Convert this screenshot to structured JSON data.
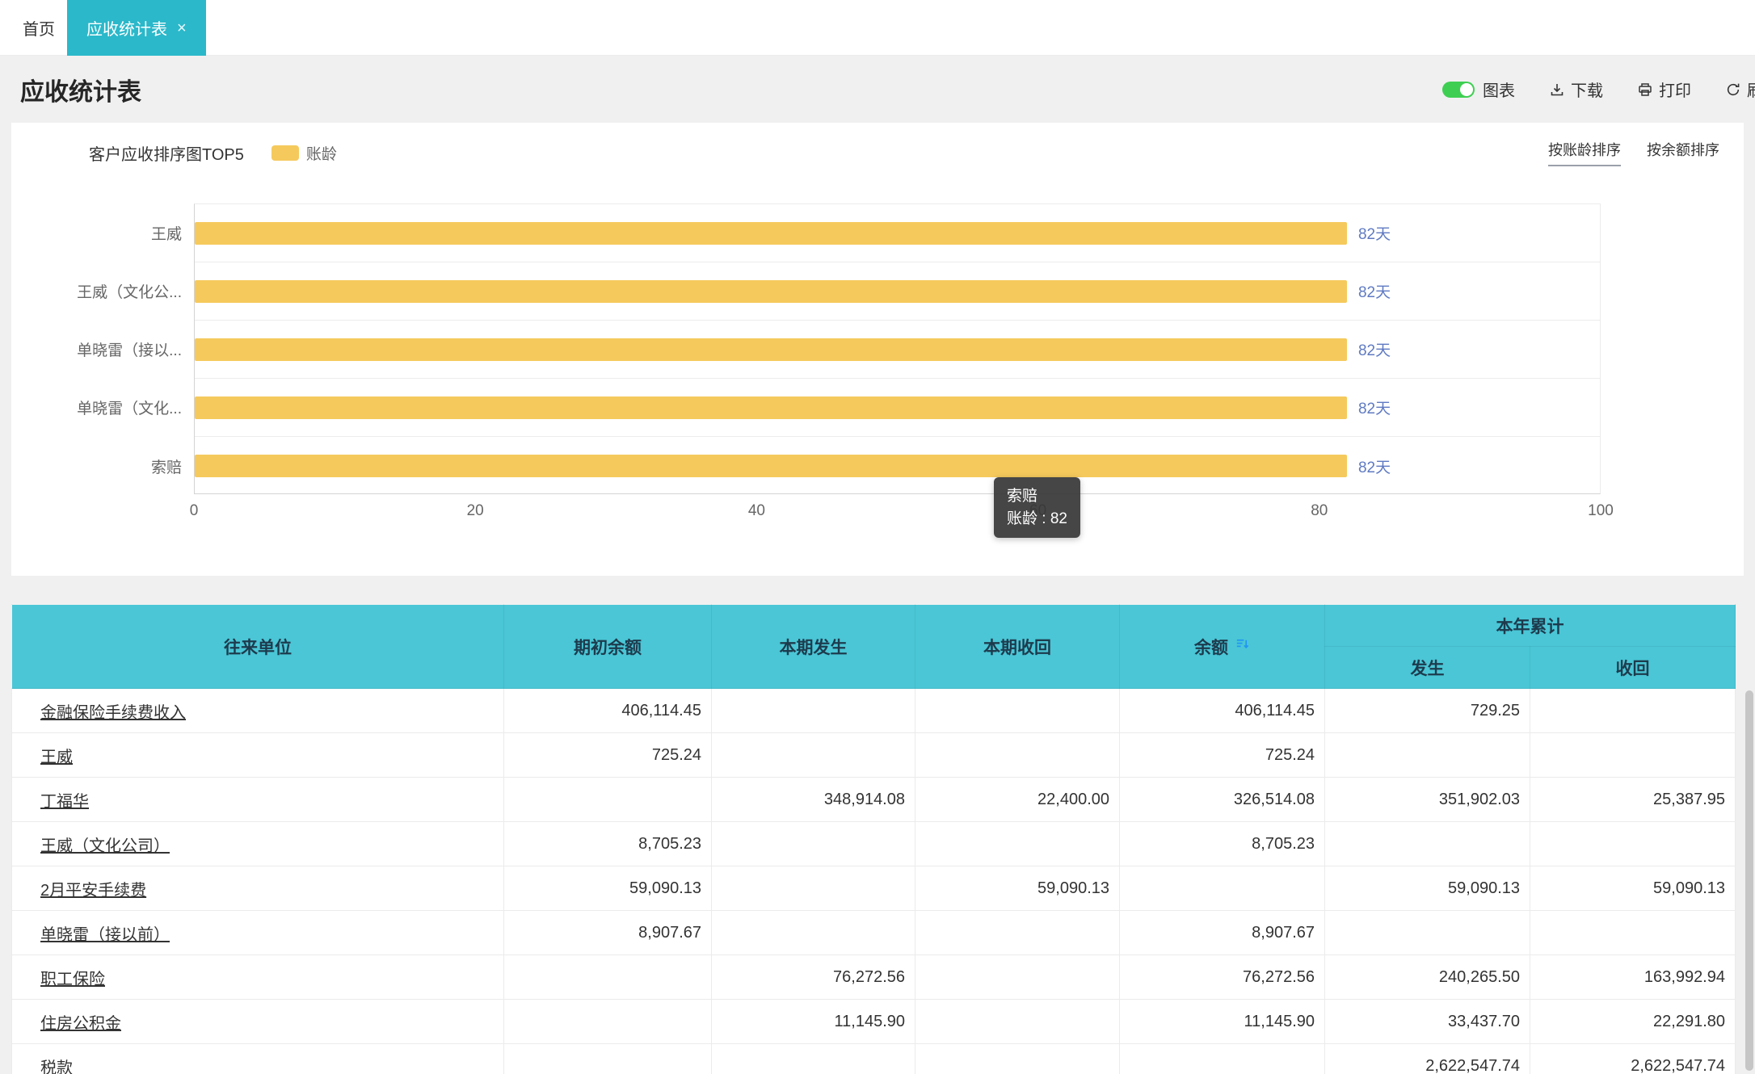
{
  "tabs": {
    "home": "首页",
    "active": "应收统计表",
    "close": "×"
  },
  "header": {
    "title": "应收统计表",
    "toolbar": {
      "chart_toggle": "图表",
      "download": "下载",
      "print": "打印",
      "refresh": "刷新"
    }
  },
  "chart": {
    "title": "客户应收排序图TOP5",
    "legend_label": "账龄",
    "sort_by_age": "按账龄排序",
    "sort_by_balance": "按余额排序",
    "tooltip_title": "索赔",
    "tooltip_value": "账龄 : 82"
  },
  "chart_data": {
    "type": "bar",
    "orientation": "horizontal",
    "title": "客户应收排序图TOP5",
    "series_name": "账龄",
    "categories": [
      "王威",
      "王威（文化公...",
      "单晓雷（接以...",
      "单晓雷（文化...",
      "索赔"
    ],
    "values": [
      82,
      82,
      82,
      82,
      82
    ],
    "value_labels": [
      "82天",
      "82天",
      "82天",
      "82天",
      "82天"
    ],
    "xlim": [
      0,
      100
    ],
    "x_ticks": [
      "0",
      "20",
      "40",
      "60",
      "80",
      "100"
    ],
    "bar_color": "#f5c95c",
    "grid": true,
    "legend_position": "top-left"
  },
  "table": {
    "header": {
      "partner": "往来单位",
      "opening_balance": "期初余额",
      "period_incurred": "本期发生",
      "period_received": "本期收回",
      "balance": "余额",
      "ytd_group": "本年累计",
      "ytd_incurred": "发生",
      "ytd_received": "收回"
    },
    "rows": [
      {
        "name": "金融保险手续费收入",
        "opening": "406,114.45",
        "incurred": "",
        "received": "",
        "balance": "406,114.45",
        "ytd_incurred": "729.25",
        "ytd_received": ""
      },
      {
        "name": "王威",
        "opening": "725.24",
        "incurred": "",
        "received": "",
        "balance": "725.24",
        "ytd_incurred": "",
        "ytd_received": ""
      },
      {
        "name": "丁福华",
        "opening": "",
        "incurred": "348,914.08",
        "received": "22,400.00",
        "balance": "326,514.08",
        "ytd_incurred": "351,902.03",
        "ytd_received": "25,387.95"
      },
      {
        "name": "王威（文化公司）",
        "opening": "8,705.23",
        "incurred": "",
        "received": "",
        "balance": "8,705.23",
        "ytd_incurred": "",
        "ytd_received": ""
      },
      {
        "name": "2月平安手续费",
        "opening": "59,090.13",
        "incurred": "",
        "received": "59,090.13",
        "balance": "",
        "ytd_incurred": "59,090.13",
        "ytd_received": "59,090.13"
      },
      {
        "name": "单晓雷（接以前）",
        "opening": "8,907.67",
        "incurred": "",
        "received": "",
        "balance": "8,907.67",
        "ytd_incurred": "",
        "ytd_received": ""
      },
      {
        "name": "职工保险",
        "opening": "",
        "incurred": "76,272.56",
        "received": "",
        "balance": "76,272.56",
        "ytd_incurred": "240,265.50",
        "ytd_received": "163,992.94"
      },
      {
        "name": "住房公积金",
        "opening": "",
        "incurred": "11,145.90",
        "received": "",
        "balance": "11,145.90",
        "ytd_incurred": "33,437.70",
        "ytd_received": "22,291.80"
      },
      {
        "name": "税款",
        "opening": "",
        "incurred": "",
        "received": "",
        "balance": "",
        "ytd_incurred": "2,622,547.74",
        "ytd_received": "2,622,547.74"
      }
    ]
  },
  "colors": {
    "tab_active": "#2bb8ca",
    "table_header_bg": "#4ac6d6",
    "bar": "#f5c95c",
    "toggle_on": "#3ecf52",
    "sort_icon": "#2196f3",
    "bar_label": "#5f7ac2"
  }
}
